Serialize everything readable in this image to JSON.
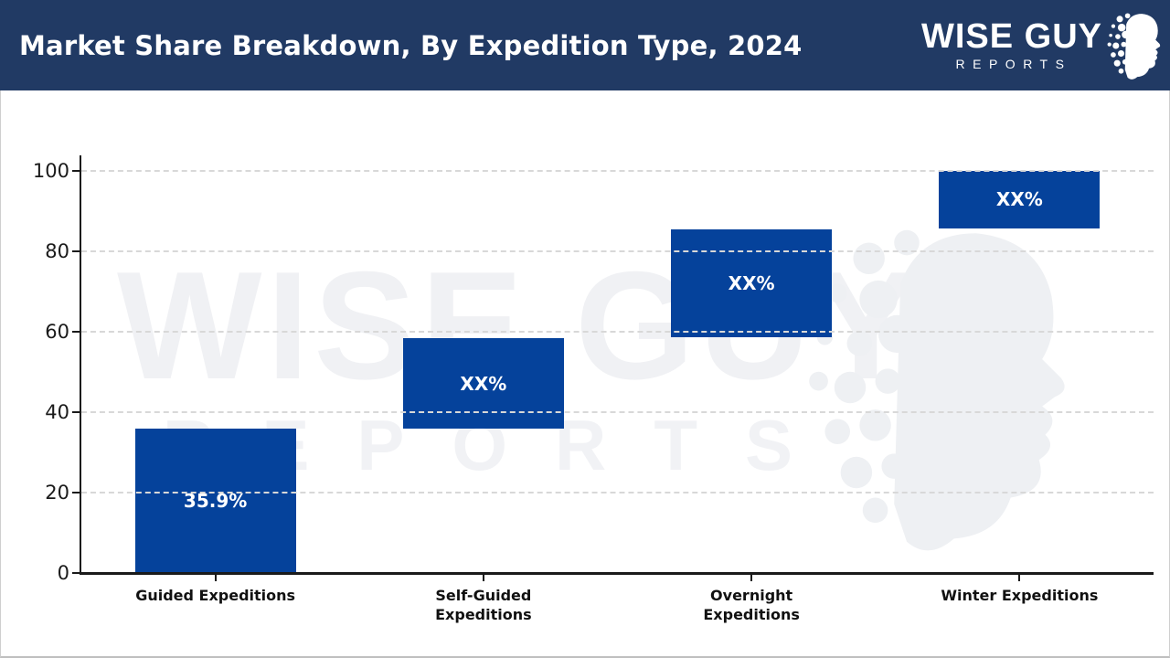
{
  "header": {
    "title": "Market Share Breakdown, By Expedition Type, 2024",
    "logo_primary": "WISE GUY",
    "logo_secondary": "REPORTS"
  },
  "watermark": {
    "primary": "WISE GUY",
    "secondary": "REPORTS"
  },
  "colors": {
    "header_bg": "#213a64",
    "bar": "#05429b",
    "bar_label": "#ffffff",
    "axis": "#1a1a1a",
    "grid": "#d8d8d8",
    "tick_label": "#1a1a1a",
    "watermark": "#f0f1f4"
  },
  "chart_data": {
    "type": "bar",
    "subtype": "waterfall",
    "title": "Market Share Breakdown, By Expedition Type, 2024",
    "categories": [
      "Guided Expeditions",
      "Self-Guided\nExpeditions",
      "Overnight\nExpeditions",
      "Winter Expeditions"
    ],
    "segments": [
      {
        "category": "Guided Expeditions",
        "value_label": "35.9%",
        "start": 0,
        "end": 35.9
      },
      {
        "category": "Self-Guided Expeditions",
        "value_label": "XX%",
        "start": 35.9,
        "end": 58.3
      },
      {
        "category": "Overnight Expeditions",
        "value_label": "XX%",
        "start": 58.6,
        "end": 85.5
      },
      {
        "category": "Winter Expeditions",
        "value_label": "XX%",
        "start": 85.7,
        "end": 100
      }
    ],
    "yticks": [
      0,
      20,
      40,
      60,
      80,
      100
    ],
    "ylim": [
      0,
      100
    ],
    "xlabel": "",
    "ylabel": "",
    "grid": "horizontal-dashed-over-bars",
    "legend": "none"
  }
}
